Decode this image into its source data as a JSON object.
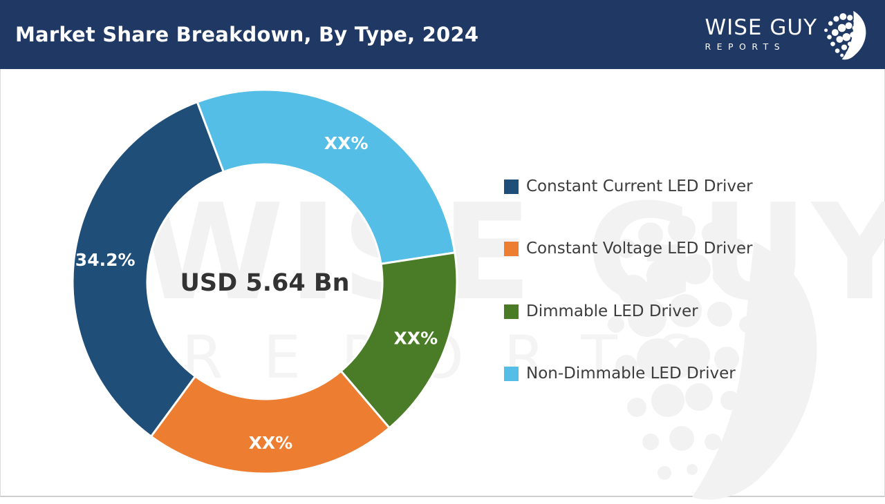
{
  "header": {
    "title": "Market Share Breakdown, By Type, 2024",
    "bg_color": "#203864",
    "logo": {
      "line1": "WISE GUY",
      "line2": "REPORTS"
    }
  },
  "watermark": {
    "line1": "WISE GUY",
    "line2": "REPORTS"
  },
  "chart_data": {
    "type": "pie",
    "subtype": "donut",
    "title": "Market Share Breakdown, By Type, 2024",
    "center_label": "USD 5.64 Bn",
    "start_angle_deg_clockwise_from_top": -20.6,
    "inner_radius_ratio": 0.61,
    "grid": false,
    "legend_position": "right",
    "segments": [
      {
        "name": "Non-Dimmable LED Driver",
        "value_pct": 28.3,
        "label": "XX%",
        "color": "#54BEE7"
      },
      {
        "name": "Dimmable LED Driver",
        "value_pct": 16.2,
        "label": "XX%",
        "color": "#4A7C28"
      },
      {
        "name": "Constant Voltage LED Driver",
        "value_pct": 21.3,
        "label": "XX%",
        "color": "#ED7D31"
      },
      {
        "name": "Constant Current LED Driver",
        "value_pct": 34.2,
        "label": "34.2%",
        "color": "#1F4E79"
      }
    ]
  },
  "legend": {
    "items": [
      {
        "label": "Constant Current LED Driver",
        "color": "#1F4E79"
      },
      {
        "label": "Constant Voltage LED Driver",
        "color": "#ED7D31"
      },
      {
        "label": "Dimmable LED Driver",
        "color": "#4A7C28"
      },
      {
        "label": "Non-Dimmable LED Driver",
        "color": "#54BEE7"
      }
    ]
  }
}
